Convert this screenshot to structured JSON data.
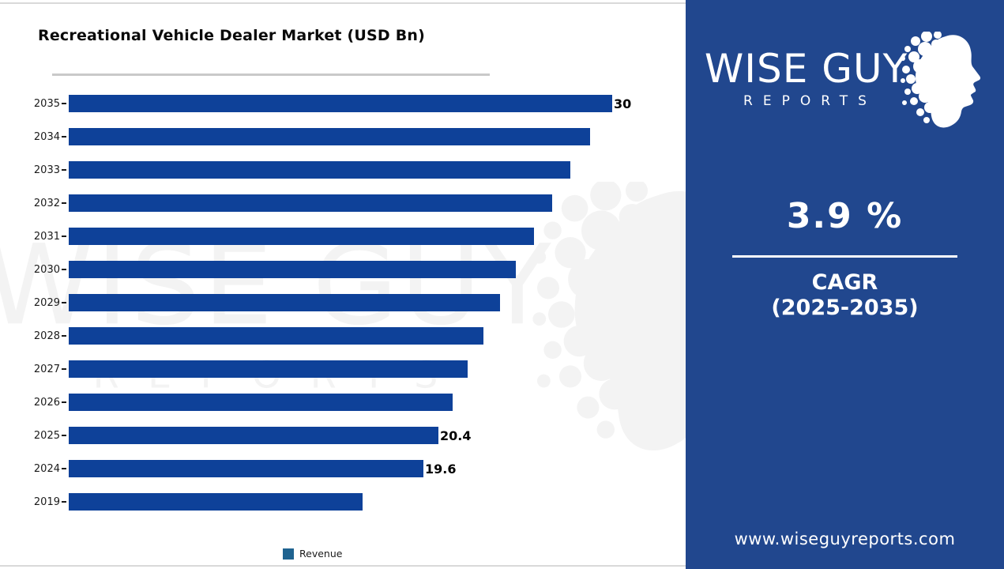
{
  "title": "Recreational Vehicle Dealer Market (USD Bn)",
  "colors": {
    "bar": "#0e4199",
    "panel": "#21478e",
    "legend_swatch": "#1f6390",
    "watermark": "#f3f3f3",
    "title_text": "#0a0a0a"
  },
  "chart_data": {
    "type": "bar",
    "orientation": "horizontal",
    "title": "Recreational Vehicle Dealer Market (USD Bn)",
    "xlabel": "",
    "ylabel": "",
    "categories": [
      "2035",
      "2034",
      "2033",
      "2032",
      "2031",
      "2030",
      "2029",
      "2028",
      "2027",
      "2026",
      "2025",
      "2024",
      "2019"
    ],
    "values": [
      30,
      28.8,
      27.7,
      26.7,
      25.7,
      24.7,
      23.8,
      22.9,
      22.0,
      21.2,
      20.4,
      19.6,
      16.2
    ],
    "value_labels": [
      "30",
      "",
      "",
      "",
      "",
      "",
      "",
      "",
      "",
      "",
      "20.4",
      "19.6",
      ""
    ],
    "xlim": [
      0,
      30.5
    ],
    "grid": false,
    "legend_entries": [
      "Revenue"
    ],
    "legend_position": "bottom-center"
  },
  "legend": {
    "label": "Revenue"
  },
  "watermark": {
    "line1": "WISE GUY",
    "line2": "REPORTS"
  },
  "brand_panel": {
    "logo_line1": "WISE GUY",
    "logo_line2": "REPORTS",
    "cagr_value": "3.9 %",
    "cagr_label_line1": "CAGR",
    "cagr_label_line2": "(2025-2035)",
    "website": "www.wiseguyreports.com"
  }
}
